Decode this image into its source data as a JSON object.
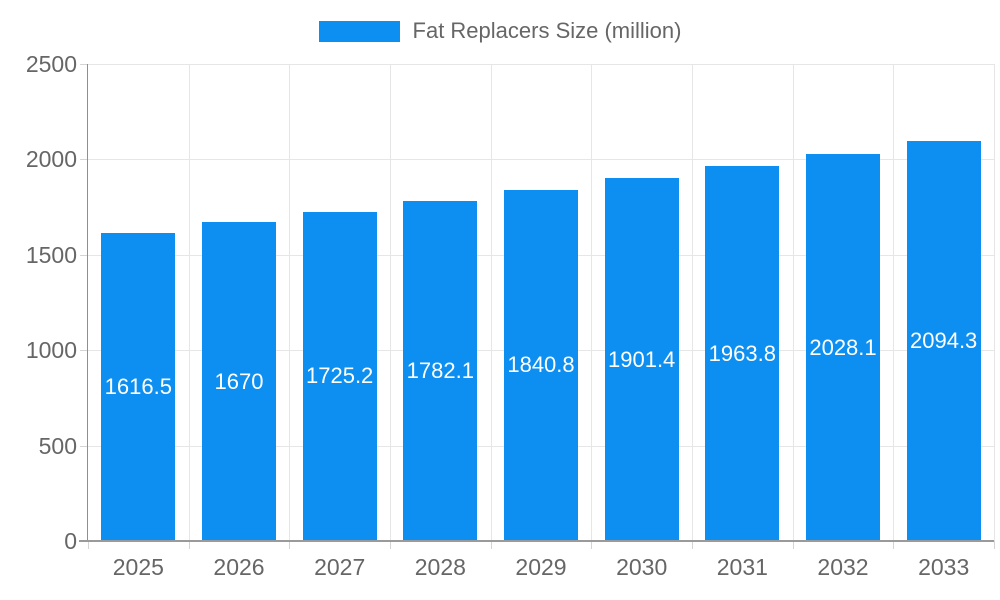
{
  "legend": {
    "label": "Fat Replacers Size (million)"
  },
  "chart_data": {
    "type": "bar",
    "title": "Fat Replacers Size (million)",
    "categories": [
      "2025",
      "2026",
      "2027",
      "2028",
      "2029",
      "2030",
      "2031",
      "2032",
      "2033"
    ],
    "values": [
      1616.5,
      1670,
      1725.2,
      1782.1,
      1840.8,
      1901.4,
      1963.8,
      2028.1,
      2094.3
    ],
    "series": [
      {
        "name": "Fat Replacers Size (million)",
        "values": [
          1616.5,
          1670,
          1725.2,
          1782.1,
          1840.8,
          1901.4,
          1963.8,
          2028.1,
          2094.3
        ]
      }
    ],
    "xlabel": "",
    "ylabel": "",
    "ylim": [
      0,
      2500
    ],
    "yticks": [
      0,
      500,
      1000,
      1500,
      2000,
      2500
    ],
    "grid": true,
    "legend_position": "top",
    "bar_color": "#0d8ff2",
    "value_label_color": "#ffffff",
    "axis_text_color": "#666666",
    "grid_color": "#e6e6e6"
  }
}
